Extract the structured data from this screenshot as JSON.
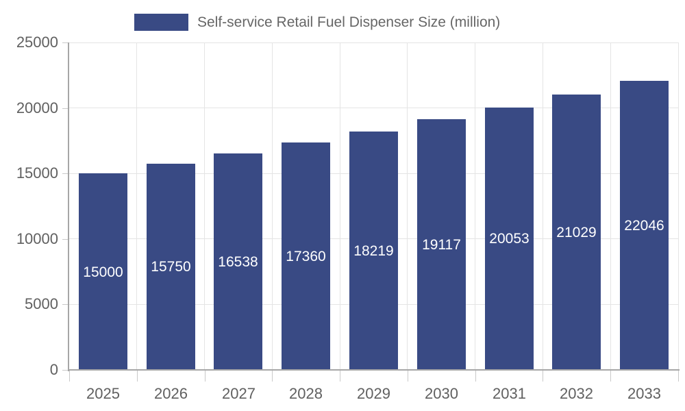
{
  "chart_data": {
    "type": "bar",
    "title": "Self-service Retail Fuel Dispenser Size (million)",
    "categories": [
      "2025",
      "2026",
      "2027",
      "2028",
      "2029",
      "2030",
      "2031",
      "2032",
      "2033"
    ],
    "series": [
      {
        "name": "Self-service Retail Fuel Dispenser Size (million)",
        "values": [
          15000,
          15750,
          16538,
          17360,
          18219,
          19117,
          20053,
          21029,
          22046
        ]
      }
    ],
    "xlabel": "",
    "ylabel": "",
    "ylim": [
      0,
      25000
    ],
    "yticks": [
      0,
      5000,
      10000,
      15000,
      20000,
      25000
    ],
    "grid": true,
    "legend_position": "top",
    "value_label_position": "inside-center",
    "colors": {
      "bar": "#394a84",
      "value_label": "#ffffff",
      "axis_text": "#606060",
      "legend_text": "#666666",
      "grid_line": "#e4e4e4",
      "axis_line": "#a6a6a6"
    }
  }
}
